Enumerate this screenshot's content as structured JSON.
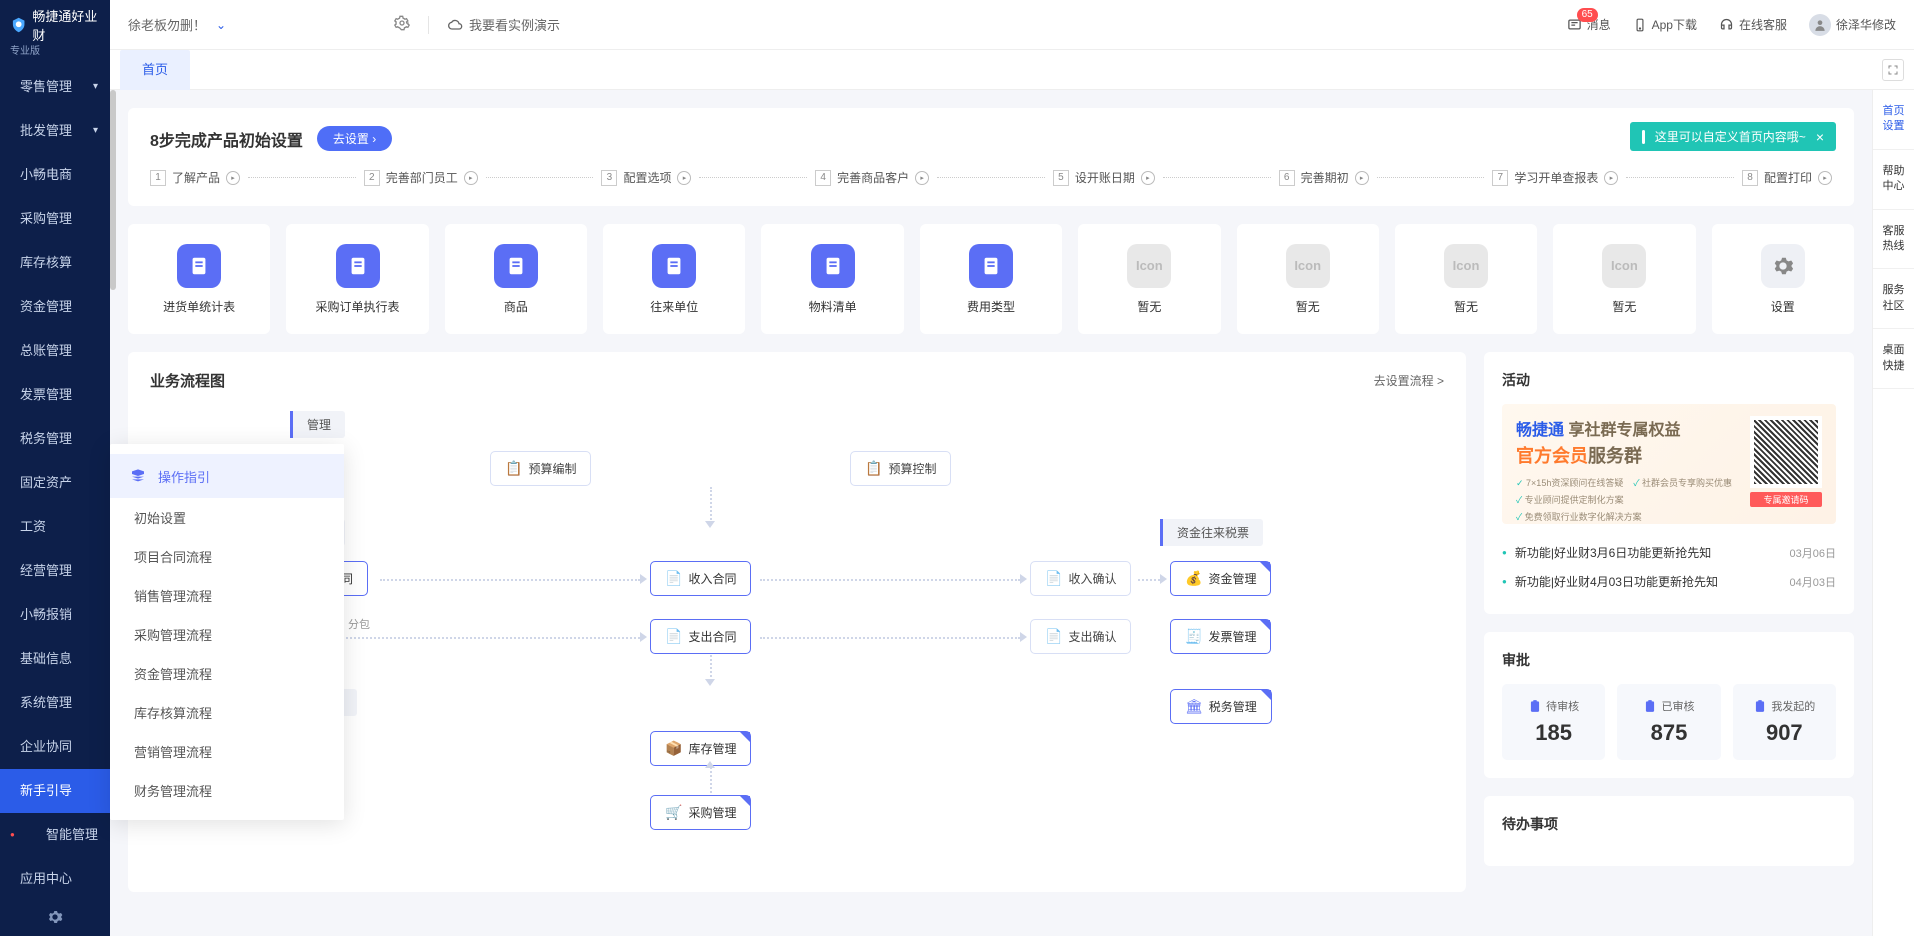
{
  "logo": {
    "brand": "畅捷通好业财",
    "edition": "专业版"
  },
  "sidebar": {
    "items": [
      {
        "label": "零售管理",
        "caret": true
      },
      {
        "label": "批发管理",
        "caret": true
      },
      {
        "label": "小畅电商"
      },
      {
        "label": "采购管理"
      },
      {
        "label": "库存核算"
      },
      {
        "label": "资金管理"
      },
      {
        "label": "总账管理"
      },
      {
        "label": "发票管理"
      },
      {
        "label": "税务管理"
      },
      {
        "label": "固定资产"
      },
      {
        "label": "工资"
      },
      {
        "label": "经营管理"
      },
      {
        "label": "小畅报销"
      },
      {
        "label": "基础信息"
      },
      {
        "label": "系统管理"
      },
      {
        "label": "企业协同"
      },
      {
        "label": "新手引导",
        "active": true
      },
      {
        "label": "智能管理",
        "intel": true
      },
      {
        "label": "应用中心"
      }
    ]
  },
  "topbar": {
    "org": "徐老板勿删！",
    "demo": "我要看实例演示",
    "msg": "消息",
    "msg_badge": "65",
    "app": "App下载",
    "service": "在线客服",
    "user": "徐泽华修改"
  },
  "tab": {
    "home": "首页"
  },
  "setup": {
    "title": "8步完成产品初始设置",
    "go": "去设置",
    "tip": "这里可以自定义首页内容哦~",
    "steps": [
      "了解产品",
      "完善部门员工",
      "配置选项",
      "完善商品客户",
      "设开账日期",
      "完善期初",
      "学习开单查报表",
      "配置打印"
    ]
  },
  "quick": {
    "items": [
      "进货单统计表",
      "采购订单执行表",
      "商品",
      "往来单位",
      "物料清单",
      "费用类型"
    ],
    "empty": "暂无",
    "settings": "设置"
  },
  "flow": {
    "title": "业务流程图",
    "link": "去设置流程 >",
    "sec_budget": "管理",
    "sec_proj": "管理",
    "sec_supply": "链管理",
    "right_header": "资金往来税票",
    "nodes": {
      "budget_make": "预算编制",
      "budget_ctrl": "预算控制",
      "proj": "项目合同",
      "income_contract": "收入合同",
      "income_confirm": "收入确认",
      "expend_contract": "支出合同",
      "expend_confirm": "支出确认",
      "fund": "资金管理",
      "invoice": "发票管理",
      "tax": "税务管理",
      "stock": "库存管理",
      "purchase": "采购管理",
      "sub": "分包"
    }
  },
  "activity": {
    "title": "活动",
    "promo": {
      "brand": "畅捷通",
      "line1": "享社群专属权益",
      "line2a": "官方会员",
      "line2b": "服务群",
      "b1": "7×15h资深顾问在线答疑",
      "b2": "社群会员专享购买优惠",
      "b3": "专业顾问提供定制化方案",
      "b4": "免费领取行业数字化解决方案",
      "qrtag": "专属邀请码"
    },
    "news": [
      {
        "t": "新功能|好业财3月6日功能更新抢先知",
        "d": "03月06日"
      },
      {
        "t": "新功能|好业财4月03日功能更新抢先知",
        "d": "04月03日"
      }
    ]
  },
  "approval": {
    "title": "审批",
    "cards": [
      {
        "l": "待审核",
        "n": "185"
      },
      {
        "l": "已审核",
        "n": "875"
      },
      {
        "l": "我发起的",
        "n": "907"
      }
    ]
  },
  "todo": {
    "title": "待办事项"
  },
  "guide": {
    "active": "操作指引",
    "items": [
      "初始设置",
      "项目合同流程",
      "销售管理流程",
      "采购管理流程",
      "资金管理流程",
      "库存核算流程",
      "营销管理流程",
      "财务管理流程"
    ]
  },
  "rail": [
    "首页设置",
    "帮助中心",
    "客服热线",
    "服务社区",
    "桌面快捷"
  ]
}
